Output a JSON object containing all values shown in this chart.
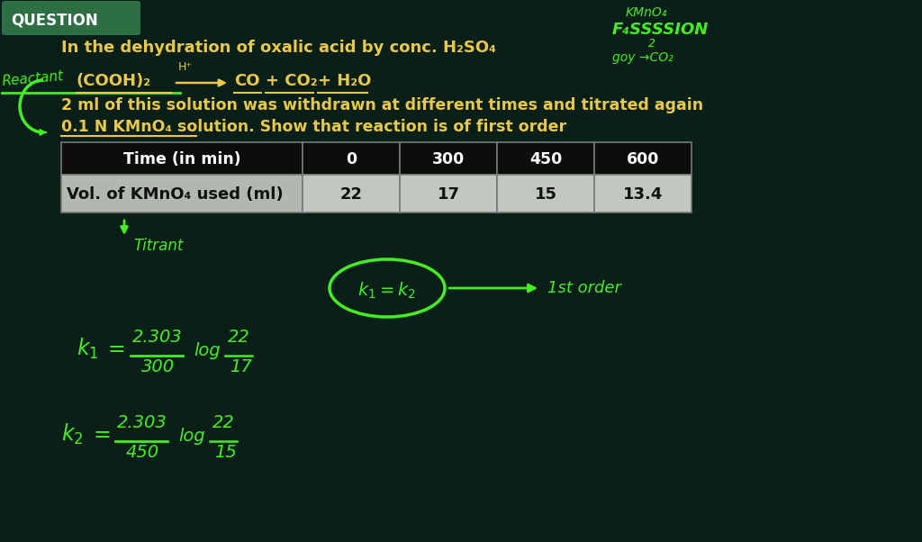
{
  "background_color": "#0a1f18",
  "title_box_color": "#2d6e44",
  "title_text": "QUESTION",
  "yellow_text_color": "#e8c84a",
  "white_text_color": "#e8e8e8",
  "green_hw_color": "#44ee22",
  "table_header_bg": "#111111",
  "table_data_bg": "#b8b8b8",
  "table_border_color": "#888888",
  "table_headers": [
    "Time (in min)",
    "0",
    "300",
    "450",
    "600"
  ],
  "table_row_label": "Vol. of KMnO₄ used (ml)",
  "table_values": [
    "22",
    "17",
    "15",
    "13.4"
  ],
  "top_right_kmno4": "KMnO₄",
  "top_right_session": "F₄SSSSION",
  "top_right_sub": "2",
  "top_right_goy": "goy →CO₂"
}
